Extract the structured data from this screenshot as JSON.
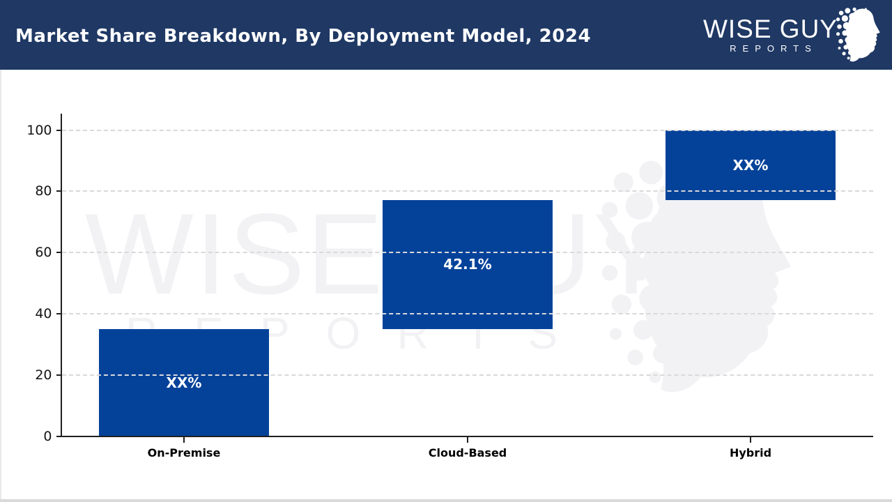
{
  "header": {
    "title": "Market Share Breakdown, By Deployment Model, 2024",
    "logo": {
      "line1": "WISE GUY",
      "line2": "REPORTS"
    }
  },
  "watermark": {
    "line1": "WISE GUY",
    "line2": "REPORTS"
  },
  "chart_data": {
    "type": "bar",
    "subtype": "waterfall-stacked-percentage",
    "title": "Market Share Breakdown, By Deployment Model, 2024",
    "categories": [
      "On-Premise",
      "Cloud-Based",
      "Hybrid"
    ],
    "segments": [
      {
        "category": "On-Premise",
        "from": 0,
        "to": 35,
        "label": "XX%",
        "masked": true
      },
      {
        "category": "Cloud-Based",
        "from": 35,
        "to": 77.1,
        "label": "42.1%",
        "masked": false,
        "value": 42.1
      },
      {
        "category": "Hybrid",
        "from": 77.1,
        "to": 100,
        "label": "XX%",
        "masked": true
      }
    ],
    "xlabel": "",
    "ylabel": "",
    "y_ticks": [
      0,
      20,
      40,
      60,
      80,
      100
    ],
    "ylim": [
      0,
      100
    ],
    "grid": "horizontal-dashed",
    "legend": "none",
    "bar_color": "#04429A",
    "bar_label_color": "#ffffff"
  },
  "colors": {
    "header_bg": "#1F3864",
    "title_text": "#ffffff",
    "bar_fill": "#04429A",
    "gridline": "#d9d9d9",
    "axis": "#1f1f1f",
    "watermark": "#f2f2f5",
    "footer_strip": "#d9d9d9"
  }
}
